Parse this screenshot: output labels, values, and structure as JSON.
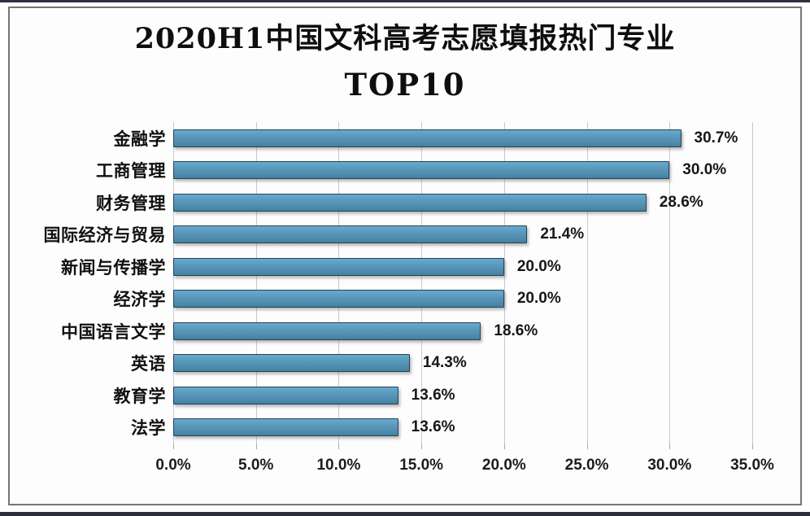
{
  "title": {
    "line1": "2020H1中国文科高考志愿填报热门专业",
    "line2": "TOP10"
  },
  "chart_data": {
    "type": "bar",
    "orientation": "horizontal",
    "title": "2020H1中国文科高考志愿填报热门专业 TOP10",
    "categories": [
      "金融学",
      "工商管理",
      "财务管理",
      "国际经济与贸易",
      "新闻与传播学",
      "经济学",
      "中国语言文学",
      "英语",
      "教育学",
      "法学"
    ],
    "values": [
      30.7,
      30.0,
      28.6,
      21.4,
      20.0,
      20.0,
      18.6,
      14.3,
      13.6,
      13.6
    ],
    "value_labels": [
      "30.7%",
      "30.0%",
      "28.6%",
      "21.4%",
      "20.0%",
      "20.0%",
      "18.6%",
      "14.3%",
      "13.6%",
      "13.6%"
    ],
    "x_ticks": [
      "0.0%",
      "5.0%",
      "10.0%",
      "15.0%",
      "20.0%",
      "25.0%",
      "30.0%",
      "35.0%"
    ],
    "x_tick_values": [
      0,
      5,
      10,
      15,
      20,
      25,
      30,
      35
    ],
    "xlim": [
      0,
      35
    ],
    "xlabel": "",
    "ylabel": "",
    "grid": "vertical",
    "legend": "none",
    "colors": {
      "bar_fill_top": "#6aaacb",
      "bar_fill_bottom": "#44809f",
      "bar_border": "#24435a",
      "gridline": "#c9c9c9",
      "text": "#101010",
      "frame_border": "#757575",
      "edge_strip": "#2d2d3c"
    }
  }
}
